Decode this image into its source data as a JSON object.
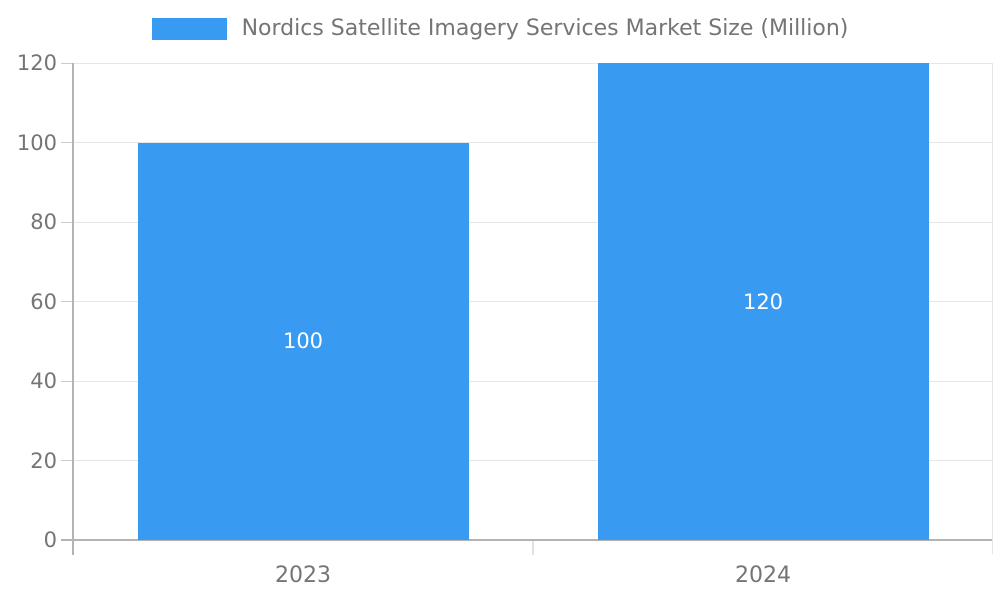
{
  "chart_data": {
    "type": "bar",
    "title": "Nordics Satellite Imagery Services Market Size (Million)",
    "categories": [
      "2023",
      "2024"
    ],
    "values": [
      100,
      120
    ],
    "data_labels": [
      "100",
      "120"
    ],
    "xlabel": "",
    "ylabel": "",
    "ylim": [
      0,
      120
    ],
    "ytick_step": 20,
    "yticks": [
      0,
      20,
      40,
      60,
      80,
      100,
      120
    ],
    "grid": true,
    "legend_position": "top",
    "legend_items": [
      {
        "label": "Nordics Satellite Imagery Services Market Size (Million)",
        "color": "#389AF0"
      }
    ],
    "colors": {
      "bar": "#389AF0",
      "bar_label": "#FFFFFF",
      "axis_line": "#B3B3B3",
      "grid_line": "#E6E6E6",
      "tick_line": "#CCCCCC",
      "boundary_tick_line": "#E0E0E0",
      "text": "#757575",
      "background": "#FFFFFF"
    }
  }
}
